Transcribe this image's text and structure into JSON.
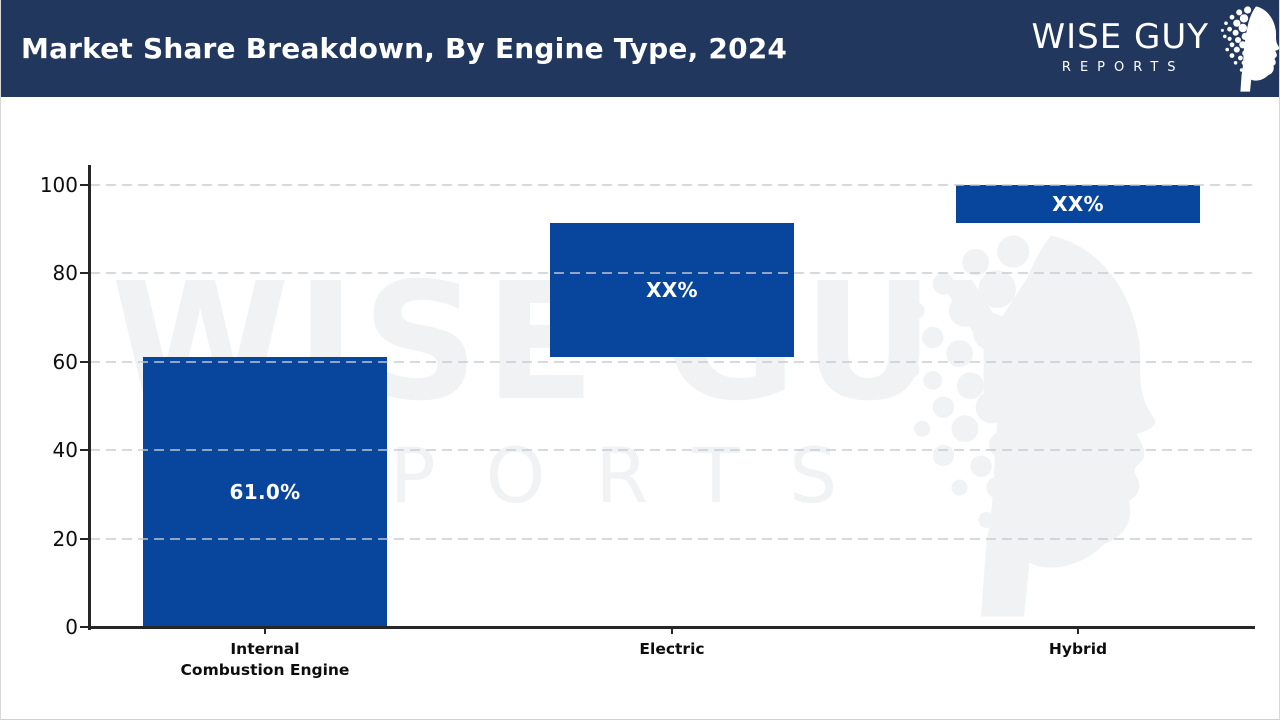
{
  "header": {
    "title": "Market Share Breakdown, By Engine Type, 2024",
    "logo": {
      "line1": "WISE GUY",
      "line2": "REPORTS"
    }
  },
  "watermark": {
    "line1": "WISE GUY",
    "line2": "REPORTS"
  },
  "colors": {
    "header_bg": "#22375E",
    "bar": "#07469C",
    "gridline": "#D9D9D9",
    "axis": "#262626",
    "tick_text": "#0D0D0D",
    "bar_label_text": "#FFFFFF",
    "watermark": "#F1F2F4",
    "page_border": "#D8D8D8"
  },
  "chart_data": {
    "type": "bar",
    "subtype": "stacked-percentage-waterfall",
    "title": "Market Share Breakdown, By Engine Type, 2024",
    "categories": [
      "Internal\nCombustion Engine",
      "Electric",
      "Hybrid"
    ],
    "segments": [
      {
        "category": "Internal\nCombustion Engine",
        "start": 0,
        "end": 61.0,
        "value": 61.0,
        "label": "61.0%"
      },
      {
        "category": "Electric",
        "start": 61.0,
        "end": 91.5,
        "value": 30.5,
        "label": "XX%"
      },
      {
        "category": "Hybrid",
        "start": 91.5,
        "end": 100,
        "value": 8.5,
        "label": "XX%"
      }
    ],
    "yticks": [
      0,
      20,
      40,
      60,
      80,
      100
    ],
    "ylim": [
      0,
      104.5
    ],
    "xlabel": "",
    "ylabel": "",
    "grid": "dashed horizontal lines at y ticks, drawn over bars",
    "legend": "none",
    "bar_value_label_position": "center of segment"
  }
}
